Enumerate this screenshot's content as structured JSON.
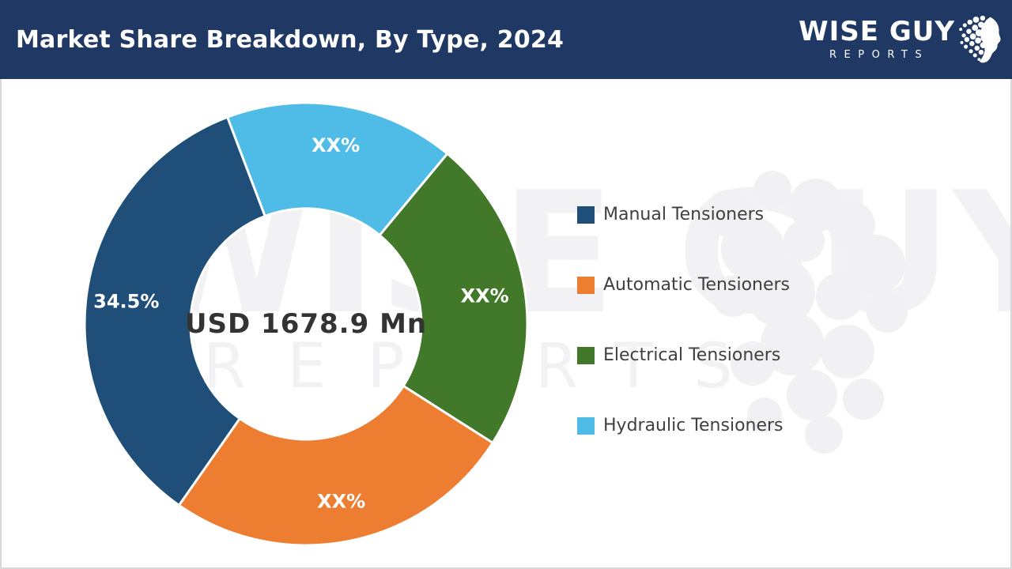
{
  "header": {
    "title": "Market Share Breakdown, By Type, 2024",
    "logo": {
      "wordmark": "WISE GUY",
      "subtitle": "REPORTS"
    },
    "background_color": "#1f3864",
    "text_color": "#ffffff"
  },
  "chart_data": {
    "type": "pie",
    "variant": "donut",
    "title": "Market Share Breakdown, By Type, 2024",
    "center_label": "USD 1678.9 Mn",
    "start_angle_deg": -20.8,
    "direction": "clockwise",
    "legend_position": "right",
    "slices": [
      {
        "name": "Hydraulic Tensioners",
        "percent": 16.8,
        "data_label": "XX%",
        "color": "#4fbce8"
      },
      {
        "name": "Electrical Tensioners",
        "percent": 23.0,
        "data_label": "XX%",
        "color": "#41782a"
      },
      {
        "name": "Automatic Tensioners",
        "percent": 25.7,
        "data_label": "XX%",
        "color": "#ed7d31"
      },
      {
        "name": "Manual Tensioners",
        "percent": 34.5,
        "data_label": "34.5%",
        "color": "#1f4e79"
      }
    ]
  },
  "legend": {
    "items": [
      {
        "label": "Manual Tensioners",
        "color": "#1f4e79"
      },
      {
        "label": "Automatic Tensioners",
        "color": "#ed7d31"
      },
      {
        "label": "Electrical Tensioners",
        "color": "#41782a"
      },
      {
        "label": "Hydraulic Tensioners",
        "color": "#4fbce8"
      }
    ]
  },
  "watermark": {
    "wordmark": "WISE GUY",
    "subtitle": "REPORTS"
  }
}
